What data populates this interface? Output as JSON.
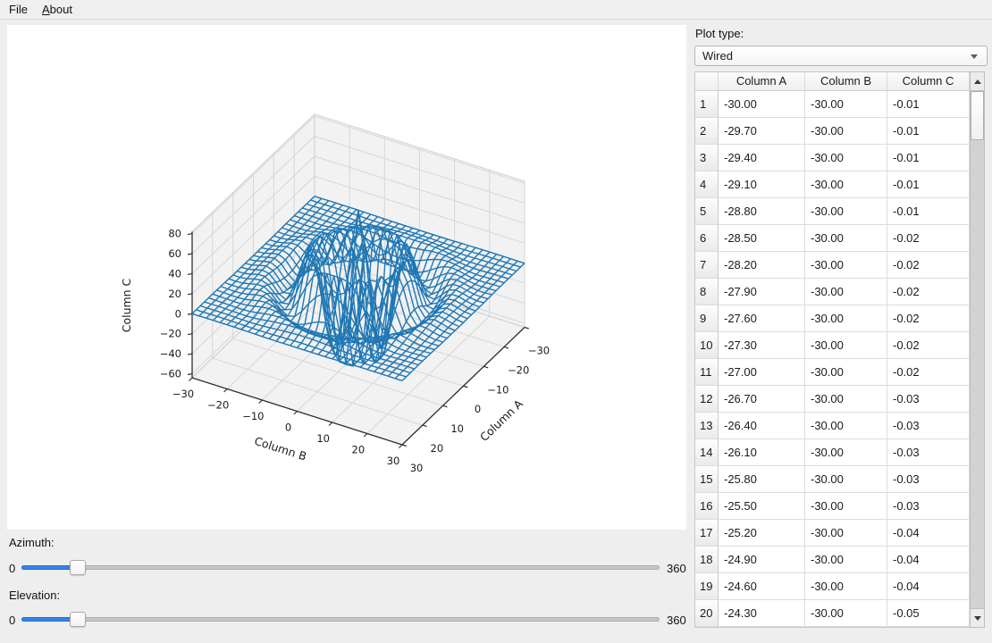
{
  "menu": {
    "file_label": "File",
    "about_first": "A",
    "about_rest": "bout"
  },
  "controls": {
    "plot_type_label": "Plot type:",
    "plot_type_value": "Wired",
    "azimuth_label": "Azimuth:",
    "elevation_label": "Elevation:",
    "sliders": {
      "min": 0,
      "max": 360,
      "min_label": "0",
      "max_label": "360",
      "azimuth_value": 32,
      "elevation_value": 32
    }
  },
  "table": {
    "columns": [
      "Column A",
      "Column B",
      "Column C"
    ],
    "rows": [
      {
        "n": "1",
        "a": "-30.00",
        "b": "-30.00",
        "c": "-0.01"
      },
      {
        "n": "2",
        "a": "-29.70",
        "b": "-30.00",
        "c": "-0.01"
      },
      {
        "n": "3",
        "a": "-29.40",
        "b": "-30.00",
        "c": "-0.01"
      },
      {
        "n": "4",
        "a": "-29.10",
        "b": "-30.00",
        "c": "-0.01"
      },
      {
        "n": "5",
        "a": "-28.80",
        "b": "-30.00",
        "c": "-0.01"
      },
      {
        "n": "6",
        "a": "-28.50",
        "b": "-30.00",
        "c": "-0.02"
      },
      {
        "n": "7",
        "a": "-28.20",
        "b": "-30.00",
        "c": "-0.02"
      },
      {
        "n": "8",
        "a": "-27.90",
        "b": "-30.00",
        "c": "-0.02"
      },
      {
        "n": "9",
        "a": "-27.60",
        "b": "-30.00",
        "c": "-0.02"
      },
      {
        "n": "10",
        "a": "-27.30",
        "b": "-30.00",
        "c": "-0.02"
      },
      {
        "n": "11",
        "a": "-27.00",
        "b": "-30.00",
        "c": "-0.02"
      },
      {
        "n": "12",
        "a": "-26.70",
        "b": "-30.00",
        "c": "-0.03"
      },
      {
        "n": "13",
        "a": "-26.40",
        "b": "-30.00",
        "c": "-0.03"
      },
      {
        "n": "14",
        "a": "-26.10",
        "b": "-30.00",
        "c": "-0.03"
      },
      {
        "n": "15",
        "a": "-25.80",
        "b": "-30.00",
        "c": "-0.03"
      },
      {
        "n": "16",
        "a": "-25.50",
        "b": "-30.00",
        "c": "-0.03"
      },
      {
        "n": "17",
        "a": "-25.20",
        "b": "-30.00",
        "c": "-0.04"
      },
      {
        "n": "18",
        "a": "-24.90",
        "b": "-30.00",
        "c": "-0.04"
      },
      {
        "n": "19",
        "a": "-24.60",
        "b": "-30.00",
        "c": "-0.04"
      },
      {
        "n": "20",
        "a": "-24.30",
        "b": "-30.00",
        "c": "-0.05"
      }
    ]
  },
  "chart_data": {
    "type": "wireframe-3d-surface",
    "xlabel": "Column B",
    "ylabel": "Column A",
    "zlabel": "Column C",
    "x_ticks": [
      -30,
      -20,
      -10,
      0,
      10,
      20,
      30
    ],
    "y_ticks": [
      -30,
      -20,
      -10,
      0,
      10,
      20,
      30
    ],
    "z_ticks": [
      -60,
      -40,
      -20,
      0,
      20,
      40,
      60,
      80
    ],
    "x_range": [
      -30,
      30
    ],
    "y_range": [
      -30,
      30
    ],
    "z_range": [
      -64,
      82
    ],
    "surface_function": "z = amplitude * cos(frequency*r) * exp(-(r/damping)^2), r = sqrt(A^2 + B^2)",
    "amplitude": 78,
    "frequency": 0.5,
    "damping": 14,
    "grid_lines": 31,
    "view": {
      "elev": 30,
      "azim": -60
    },
    "wire_color": "#1f77b4",
    "pane_color": "#f2f2f2",
    "grid_color": "#d6d6d6",
    "axis_color": "#2f2f2f"
  }
}
